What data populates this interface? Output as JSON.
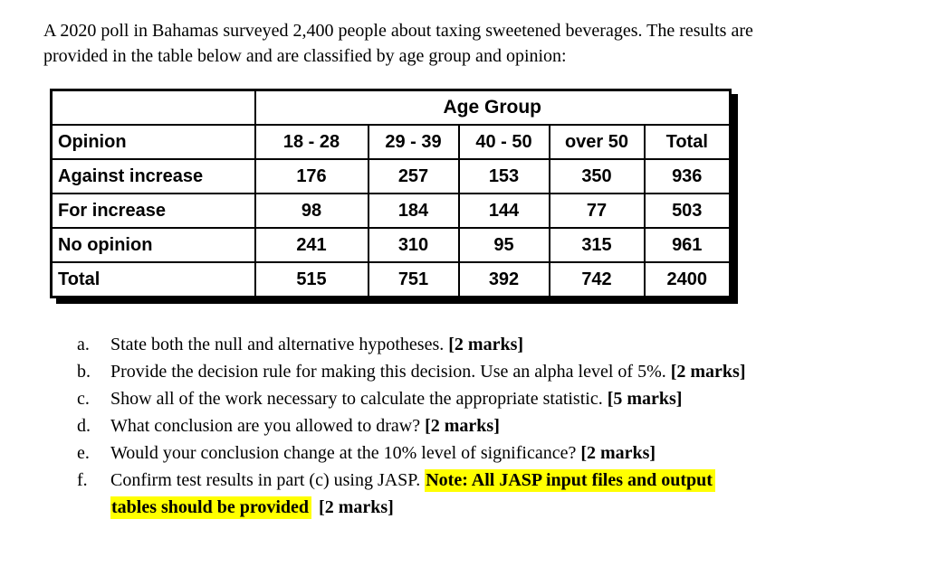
{
  "colors": {
    "highlight": "#ffff00",
    "table_border": "#000000",
    "text": "#000000"
  },
  "intro": {
    "lines": [
      "A 2020 poll in Bahamas surveyed 2,400 people about taxing sweetened beverages. The results are",
      "provided in the table below and are classified by age group and opinion:"
    ]
  },
  "table": {
    "age_group_header": "Age Group",
    "col_headers": [
      "Opinion",
      "18 - 28",
      "29 - 39",
      "40 - 50",
      "over 50",
      "Total"
    ],
    "rows": [
      {
        "label": "Against increase",
        "values": [
          "176",
          "257",
          "153",
          "350",
          "936"
        ]
      },
      {
        "label": "For increase",
        "values": [
          "98",
          "184",
          "144",
          "77",
          "503"
        ]
      },
      {
        "label": "No opinion",
        "values": [
          "241",
          "310",
          "95",
          "315",
          "961"
        ]
      },
      {
        "label": "Total",
        "values": [
          "515",
          "751",
          "392",
          "742",
          "2400"
        ]
      }
    ]
  },
  "questions": [
    {
      "letter": "a.",
      "text": "State both the null and alternative hypotheses. ",
      "marks": "[2 marks]"
    },
    {
      "letter": "b.",
      "text": "Provide the decision rule for making this decision. Use an alpha level of 5%. ",
      "marks": "[2 marks]"
    },
    {
      "letter": "c.",
      "text": "Show all of the work necessary to calculate the appropriate statistic. ",
      "marks": "[5 marks]"
    },
    {
      "letter": "d.",
      "text": "What conclusion are you allowed to draw? ",
      "marks": "[2 marks]"
    },
    {
      "letter": "e.",
      "text": "Would your conclusion change at the 10% level of significance? ",
      "marks": "[2 marks]"
    },
    {
      "letter": "f.",
      "text": "Confirm test results in part (c) using JASP. ",
      "note_line1": "Note: All JASP input files and output",
      "note_line2": "tables should be provided",
      "marks": "[2 marks]"
    }
  ]
}
